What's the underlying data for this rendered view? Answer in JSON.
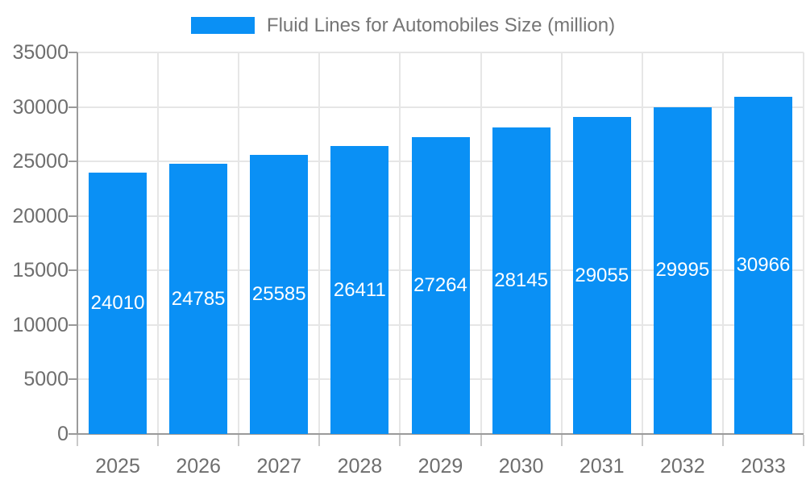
{
  "legend": {
    "label": "Fluid Lines for Automobiles Size (million)"
  },
  "chart_data": {
    "type": "bar",
    "title": "Fluid Lines for Automobiles Size (million)",
    "categories": [
      "2025",
      "2026",
      "2027",
      "2028",
      "2029",
      "2030",
      "2031",
      "2032",
      "2033"
    ],
    "series": [
      {
        "name": "Fluid Lines for Automobiles Size (million)",
        "values": [
          24010,
          24785,
          25585,
          26411,
          27264,
          28145,
          29055,
          29995,
          30966
        ]
      }
    ],
    "values": [
      24010,
      24785,
      25585,
      26411,
      27264,
      28145,
      29055,
      29995,
      30966
    ],
    "bar_value_labels": [
      "24010",
      "24785",
      "25585",
      "26411",
      "27264",
      "28145",
      "29055",
      "29995",
      "30966"
    ],
    "xlabel": "",
    "ylabel": "",
    "ylim": [
      0,
      35000
    ],
    "yticks": [
      0,
      5000,
      10000,
      15000,
      20000,
      25000,
      30000,
      35000
    ],
    "grid": true,
    "legend_position": "top",
    "colors": {
      "bar": "#0a90f5",
      "bar_label_text": "#ffffff",
      "axis_text": "#6e6e6e",
      "title_text": "#757575",
      "gridline": "#e6e6e6",
      "axis_line": "#9a9a9a",
      "x_tick": "#c9c9c9",
      "background": "#ffffff"
    }
  }
}
